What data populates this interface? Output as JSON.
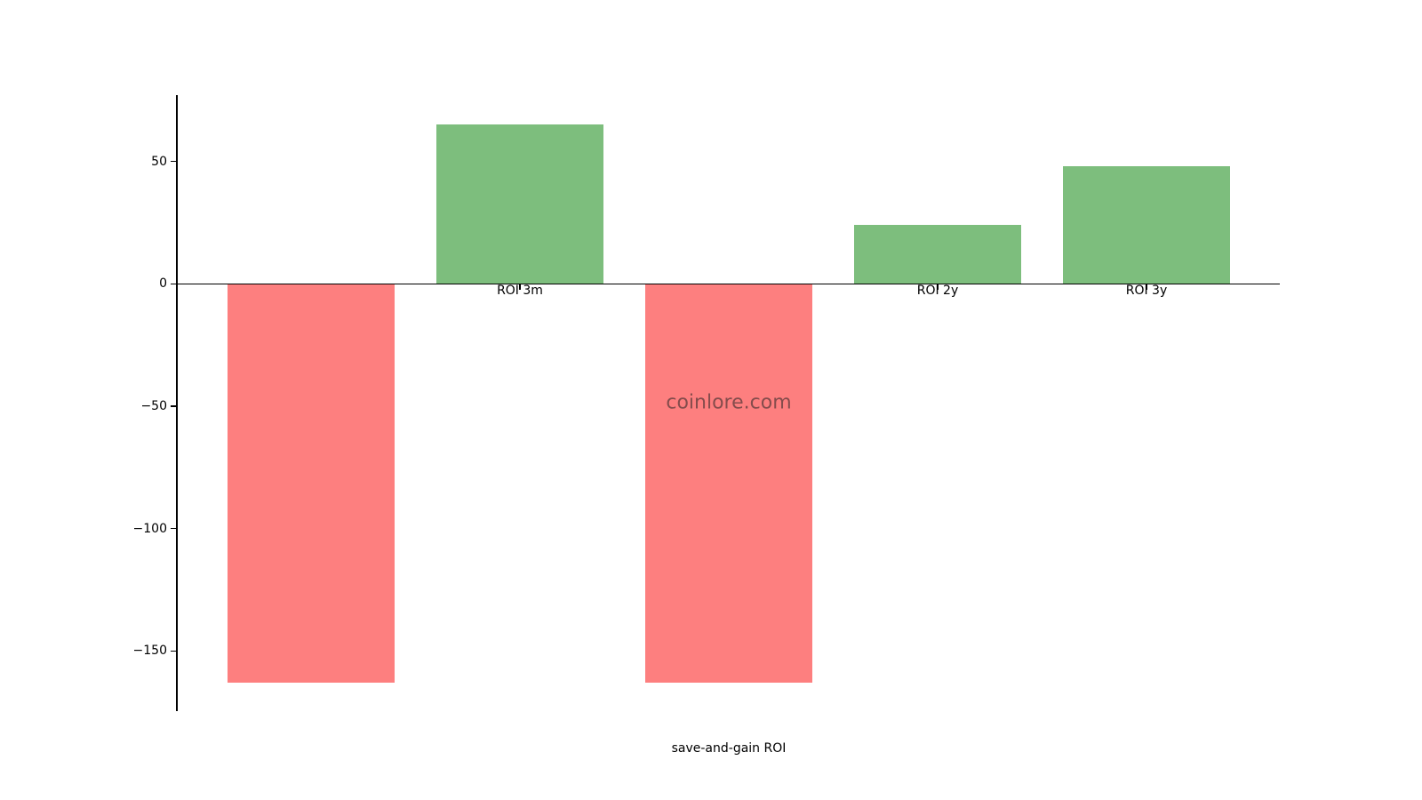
{
  "chart_data": {
    "type": "bar",
    "title": "",
    "xlabel": "save-and-gain ROI",
    "ylabel": "",
    "categories": [
      "",
      "ROI 3m",
      "",
      "ROI 2y",
      "ROI 3y"
    ],
    "values": [
      -163,
      65,
      -163,
      24,
      48
    ],
    "bar_colors": [
      "#fd7f7f",
      "#7dbe7d",
      "#fd7f7f",
      "#7dbe7d",
      "#7dbe7d"
    ],
    "positive_color": "#7dbe7d",
    "negative_color": "#fd7f7f",
    "axis_color": "#000000",
    "yticks": [
      50,
      0,
      -50,
      -100,
      -150
    ],
    "ytick_labels": [
      "50",
      "0",
      "−50",
      "−100",
      "−150"
    ],
    "ylim": [
      -175,
      77
    ],
    "grid": false,
    "legend": false
  },
  "watermark": {
    "text": "coinlore.com"
  }
}
